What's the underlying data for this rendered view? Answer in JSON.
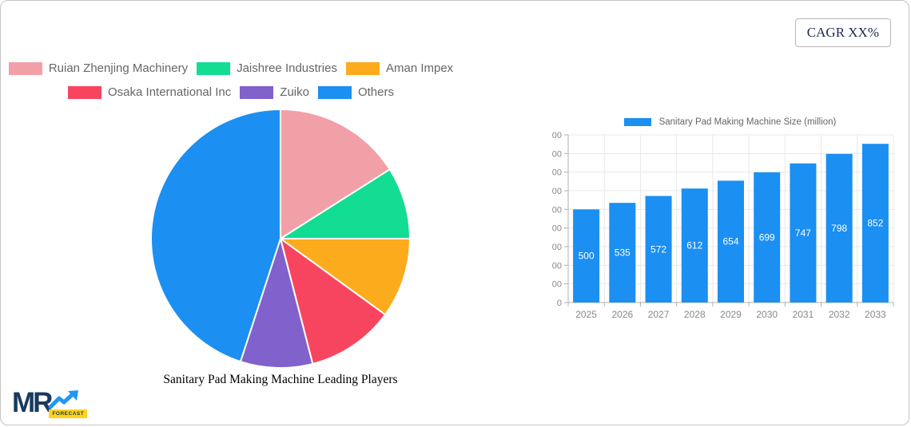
{
  "cagr_badge": "CAGR XX%",
  "logo": {
    "text": "MR",
    "badge": "FORECAST"
  },
  "colors": {
    "card_border": "#c4c4c4",
    "cagr_text": "#1a2b4c",
    "legend_text": "#666666",
    "axis_text": "#888888",
    "grid": "#e8e8e8",
    "axis_line": "#b0b0b0",
    "bar_blue": "#1b8ff2",
    "logo_navy": "#173a5e",
    "logo_blue": "#2196f3",
    "logo_yellow": "#ffd21e"
  },
  "chart_data": [
    {
      "type": "pie",
      "title": "Sanitary Pad Making Machine Leading Players",
      "legend_position": "top",
      "legend_rows": [
        3,
        3
      ],
      "labels": [
        "Ruian Zhenjing Machinery",
        "Jaishree Industries",
        "Aman Impex",
        "Osaka International Inc",
        "Zuiko",
        "Others"
      ],
      "values": [
        16,
        9,
        10,
        11,
        9,
        45
      ],
      "colors": [
        "#f2a0a7",
        "#12dd92",
        "#fcab1c",
        "#f8455f",
        "#8161cc",
        "#1b8ff2"
      ],
      "start_angle_deg": 0,
      "direction": "clockwise",
      "slice_border_color": "#ffffff"
    },
    {
      "type": "bar",
      "legend": "Sanitary Pad Making Machine Size (million)",
      "categories": [
        "2025",
        "2026",
        "2027",
        "2028",
        "2029",
        "2030",
        "2031",
        "2032",
        "2033"
      ],
      "values": [
        500,
        535,
        572,
        612,
        654,
        699,
        747,
        798,
        852
      ],
      "ylim": [
        0,
        900
      ],
      "ytick_step": 100,
      "grid": true,
      "bar_color": "#1b8ff2",
      "value_label_color": "#ffffff"
    }
  ]
}
